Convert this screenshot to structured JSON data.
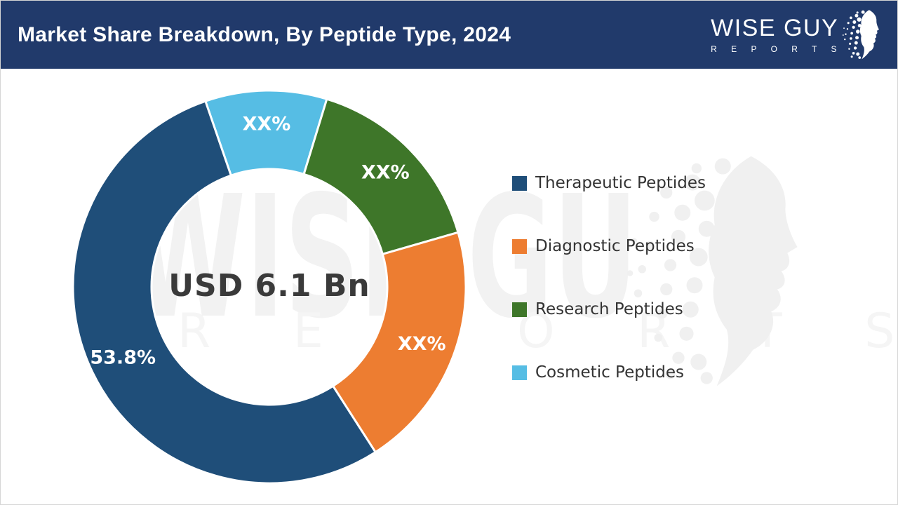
{
  "header": {
    "title": "Market Share Breakdown, By Peptide Type, 2024",
    "logo": {
      "line1": "WISE GUY",
      "line2": "R E P O R T S"
    }
  },
  "watermark": {
    "line1": "WISE GU",
    "line2": "R E P O R T S"
  },
  "chart_data": {
    "type": "pie",
    "subtype": "donut",
    "title": "Market Share Breakdown, By Peptide Type, 2024",
    "center_label": "USD 6.1 Bn",
    "inner_radius_ratio": 0.6,
    "start_angle_deg": -19,
    "legend_position": "right",
    "slices": [
      {
        "name": "Therapeutic Peptides",
        "label": "53.8%",
        "value_pct": 53.8,
        "color": "#1F4E79"
      },
      {
        "name": "Diagnostic Peptides",
        "label": "XX%",
        "value_pct": 20.4,
        "color": "#ED7D31"
      },
      {
        "name": "Research Peptides",
        "label": "XX%",
        "value_pct": 15.8,
        "color": "#3E7629"
      },
      {
        "name": "Cosmetic Peptides",
        "label": "XX%",
        "value_pct": 10.0,
        "color": "#56BDE4"
      }
    ]
  },
  "colors": {
    "header_bg": "#213A6B",
    "page_bg": "#FFFFFF",
    "frame_border": "#D6D6D6",
    "center_text": "#3A3A3A",
    "legend_text": "#333333",
    "watermark": "#F2F2F2"
  }
}
